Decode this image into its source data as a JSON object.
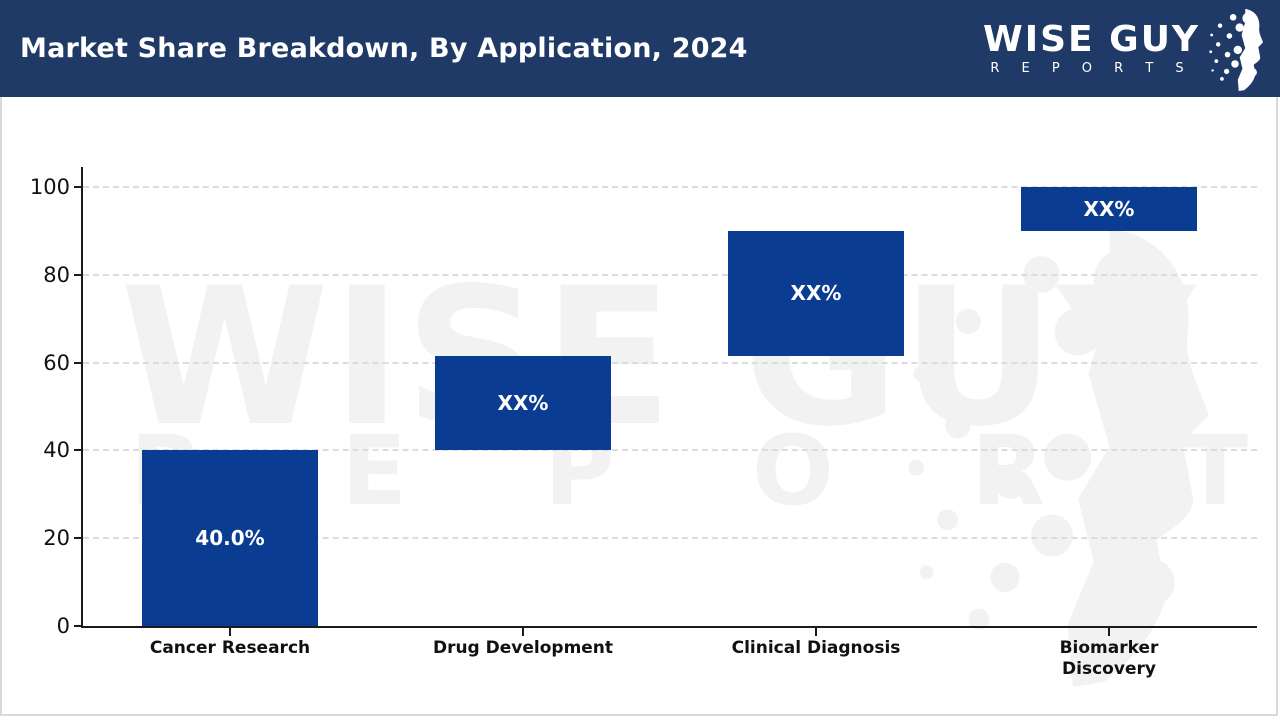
{
  "header": {
    "title": "Market Share Breakdown, By Application, 2024",
    "bg_color": "#1f3a66",
    "logo": {
      "line1": "WISE GUY",
      "line2": "R E P O R T S"
    }
  },
  "watermark": {
    "line1": "WISE GUY",
    "line2": "R E P O R T S"
  },
  "chart_data": {
    "type": "bar",
    "subtype": "waterfall",
    "title": "Market Share Breakdown, By Application, 2024",
    "categories": [
      "Cancer Research",
      "Drug Development",
      "Clinical Diagnosis",
      "Biomarker Discovery"
    ],
    "segments": [
      {
        "category": "Cancer Research",
        "label_lines": [
          "Cancer Research"
        ],
        "start": 0,
        "end": 40,
        "value": 40,
        "value_label": "40.0%"
      },
      {
        "category": "Drug Development",
        "label_lines": [
          "Drug Development"
        ],
        "start": 40,
        "end": 61.5,
        "value": 21.5,
        "value_label": "XX%"
      },
      {
        "category": "Clinical Diagnosis",
        "label_lines": [
          "Clinical Diagnosis"
        ],
        "start": 61.5,
        "end": 90,
        "value": 28.5,
        "value_label": "XX%"
      },
      {
        "category": "Biomarker Discovery",
        "label_lines": [
          "Biomarker",
          "Discovery"
        ],
        "start": 90,
        "end": 100,
        "value": 10,
        "value_label": "XX%"
      }
    ],
    "y_ticks": [
      0,
      20,
      40,
      60,
      80,
      100
    ],
    "ylim": [
      0,
      105
    ],
    "xlabel": "",
    "ylabel": "",
    "bar_color": "#0a3d91",
    "value_label_color": "#ffffff",
    "grid": "horizontal-dashed",
    "legend": "none"
  }
}
